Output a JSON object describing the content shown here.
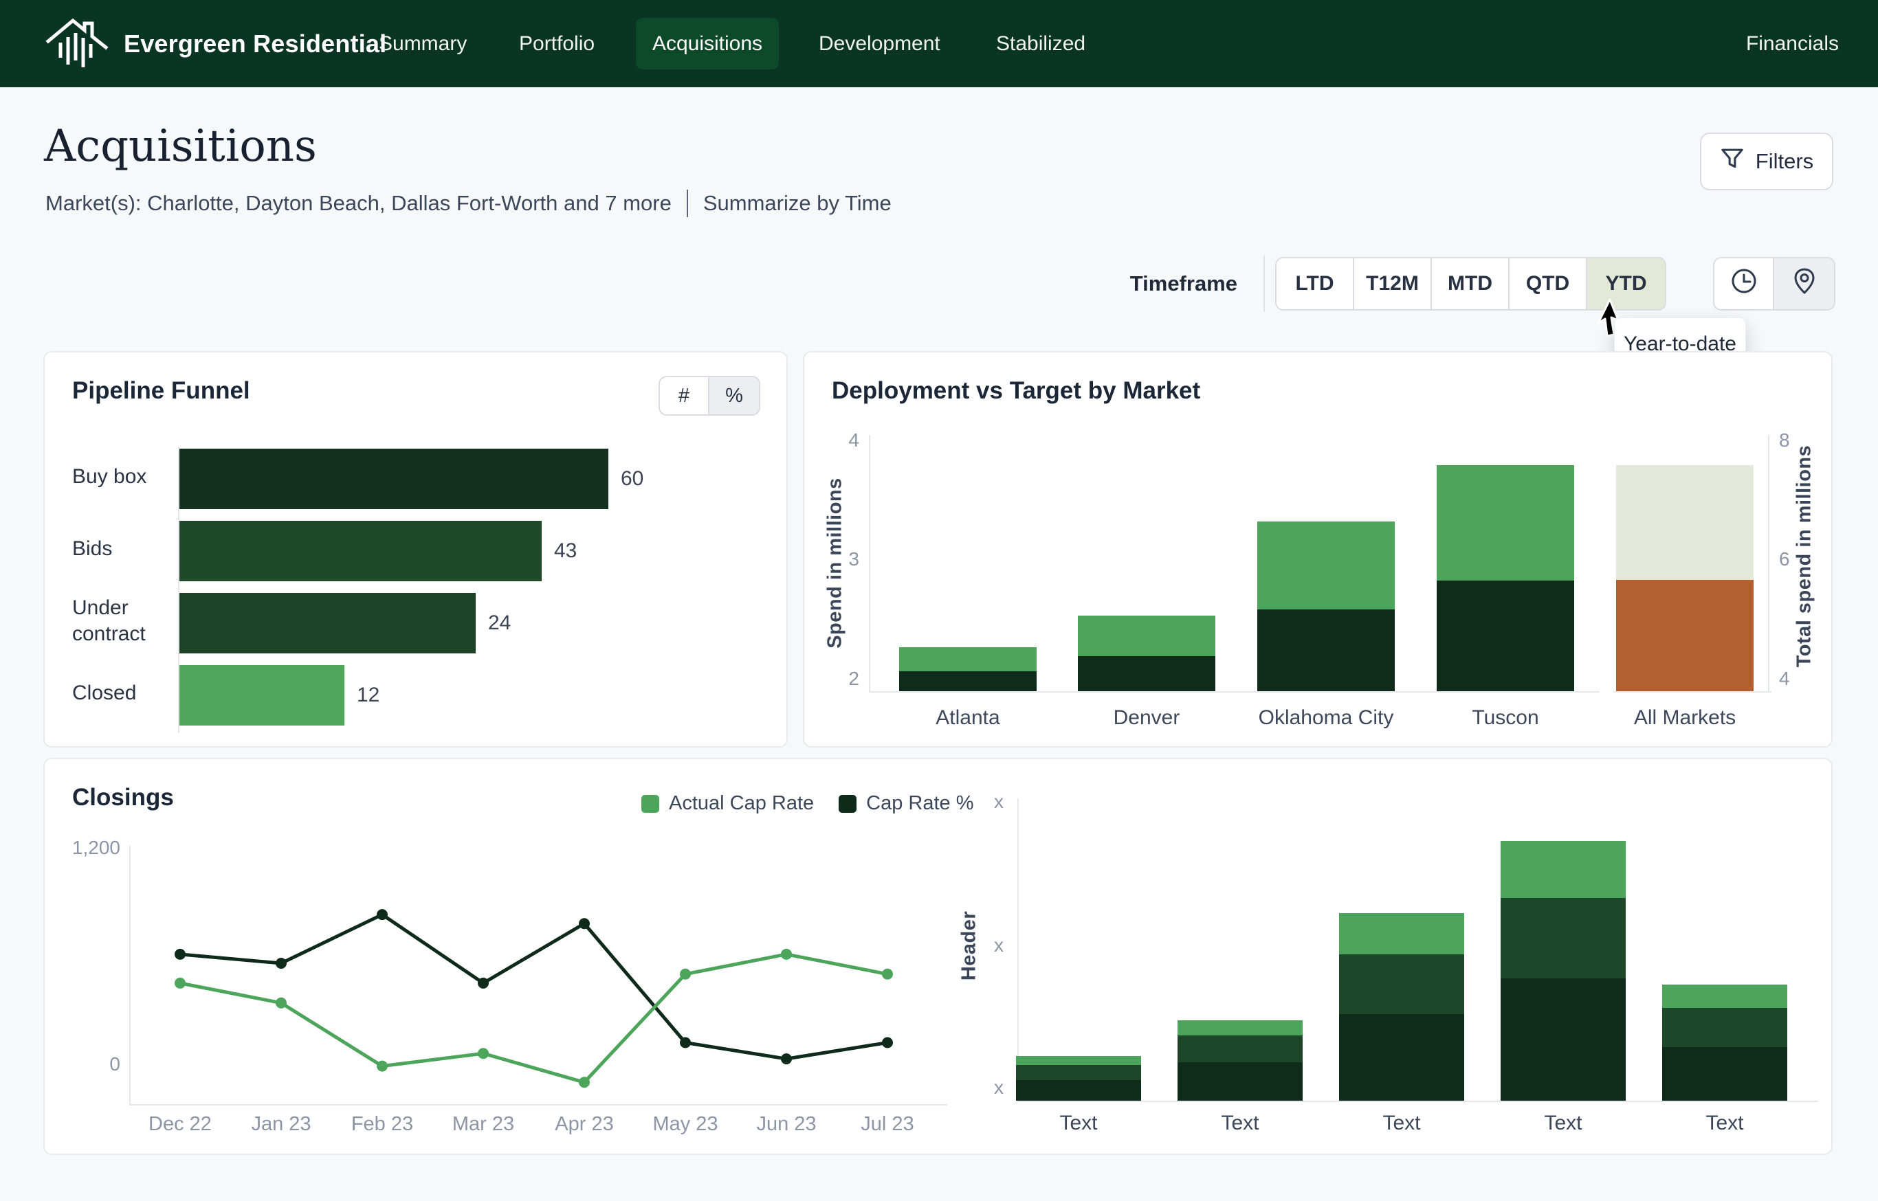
{
  "nav": {
    "brand": "Evergreen Residential",
    "items": [
      "Summary",
      "Portfolio",
      "Acquisitions",
      "Development",
      "Stabilized"
    ],
    "active_item": "Acquisitions",
    "right_item": "Financials"
  },
  "header": {
    "title": "Acquisitions",
    "subtitle_markets": "Market(s): Charlotte, Dayton Beach, Dallas Fort-Worth and 7 more",
    "subtitle_summarize": "Summarize by Time",
    "filters_label": "Filters"
  },
  "controls": {
    "timeframe_label": "Timeframe",
    "timeframe_options": [
      "LTD",
      "T12M",
      "MTD",
      "QTD",
      "YTD"
    ],
    "timeframe_selected": "YTD",
    "tooltip": "Year-to-date",
    "view_icons": [
      "clock-icon",
      "map-pin-icon"
    ]
  },
  "colors": {
    "navbar": "#0A3423",
    "nav_active_pill": "#0D4A2A",
    "page_bg": "#F7F8FA",
    "green_darkest": "#0F2C1B",
    "green_dark": "#1E4729",
    "green_mid": "#4CA55A",
    "terracotta": "#B2602F",
    "sage_light": "#E4E8DB",
    "selected_sage": "#E4E8D6",
    "axis_grey": "#8C95A5"
  },
  "chart_data": [
    {
      "id": "pipeline_funnel",
      "type": "bar",
      "orientation": "horizontal",
      "title": "Pipeline Funnel",
      "toggle": [
        "#",
        "%"
      ],
      "toggle_selected": "#",
      "categories": [
        "Buy box",
        "Bids",
        "Under contract",
        "Closed"
      ],
      "values": [
        60,
        43,
        24,
        12
      ],
      "bar_colors": [
        "#14301F",
        "#1E4A2A",
        "#1D4326",
        "#4FA75C"
      ],
      "bar_width_fractions": [
        1.0,
        0.845,
        0.69,
        0.385
      ]
    },
    {
      "id": "deployment",
      "type": "stacked-bar",
      "title": "Deployment vs Target by Market",
      "left_axis": {
        "label": "Spend in millions",
        "ticks": [
          4,
          3,
          2
        ],
        "min": 1.9,
        "max": 4
      },
      "right_axis": {
        "label": "Total spend in millions",
        "ticks": [
          8,
          6,
          4
        ],
        "min": 3.8,
        "max": 8
      },
      "markets": [
        {
          "name": "Atlanta",
          "deployed": 2.06,
          "target": 2.25,
          "axis": "left",
          "colors": [
            "#0F2C1B",
            "#4CA55A"
          ]
        },
        {
          "name": "Denver",
          "deployed": 2.18,
          "target": 2.5,
          "axis": "left",
          "colors": [
            "#0F2C1B",
            "#4CA55A"
          ]
        },
        {
          "name": "Oklahoma City",
          "deployed": 2.55,
          "target": 3.25,
          "axis": "left",
          "colors": [
            "#0F2C1B",
            "#4CA55A"
          ]
        },
        {
          "name": "Tuscon",
          "deployed": 2.78,
          "target": 3.7,
          "axis": "left",
          "colors": [
            "#0F2C1B",
            "#4CA55A"
          ]
        },
        {
          "name": "All Markets",
          "deployed": 5.57,
          "target": 7.4,
          "axis": "right",
          "colors": [
            "#B2602F",
            "#E4E8DB"
          ]
        }
      ]
    },
    {
      "id": "closings",
      "type": "line",
      "title": "Closings",
      "legend": [
        {
          "label": "Actual Cap Rate",
          "color": "#4CA55A"
        },
        {
          "label": "Cap Rate %",
          "color": "#0E2A1A"
        }
      ],
      "x": [
        "Dec 22",
        "Jan 23",
        "Feb 23",
        "Mar 23",
        "Apr 23",
        "May 23",
        "Jun 23",
        "Jul 23"
      ],
      "yticks": [
        "1,200",
        "0"
      ],
      "ylim": [
        -180,
        1310
      ],
      "series": [
        {
          "name": "Cap Rate %",
          "color": "#0E2A1A",
          "values": [
            610,
            560,
            830,
            450,
            780,
            120,
            30,
            120
          ]
        },
        {
          "name": "Actual Cap Rate",
          "color": "#4CA55A",
          "values": [
            450,
            340,
            -10,
            60,
            -100,
            500,
            610,
            500
          ]
        }
      ]
    },
    {
      "id": "stacked_header",
      "type": "stacked-bar",
      "ylabel": "Header",
      "yticks": [
        "x",
        "x",
        "x"
      ],
      "categories": [
        "Text",
        "Text",
        "Text",
        "Text",
        "Text"
      ],
      "ymax": 100,
      "series": [
        {
          "name": "segment-bottom",
          "color": "#0F2C1B",
          "values": [
            7,
            13,
            29,
            41,
            18
          ]
        },
        {
          "name": "segment-middle",
          "color": "#1E4729",
          "values": [
            5,
            9,
            20,
            27,
            13
          ]
        },
        {
          "name": "segment-top",
          "color": "#4CA55A",
          "values": [
            3,
            5,
            14,
            19,
            8
          ]
        }
      ]
    }
  ]
}
